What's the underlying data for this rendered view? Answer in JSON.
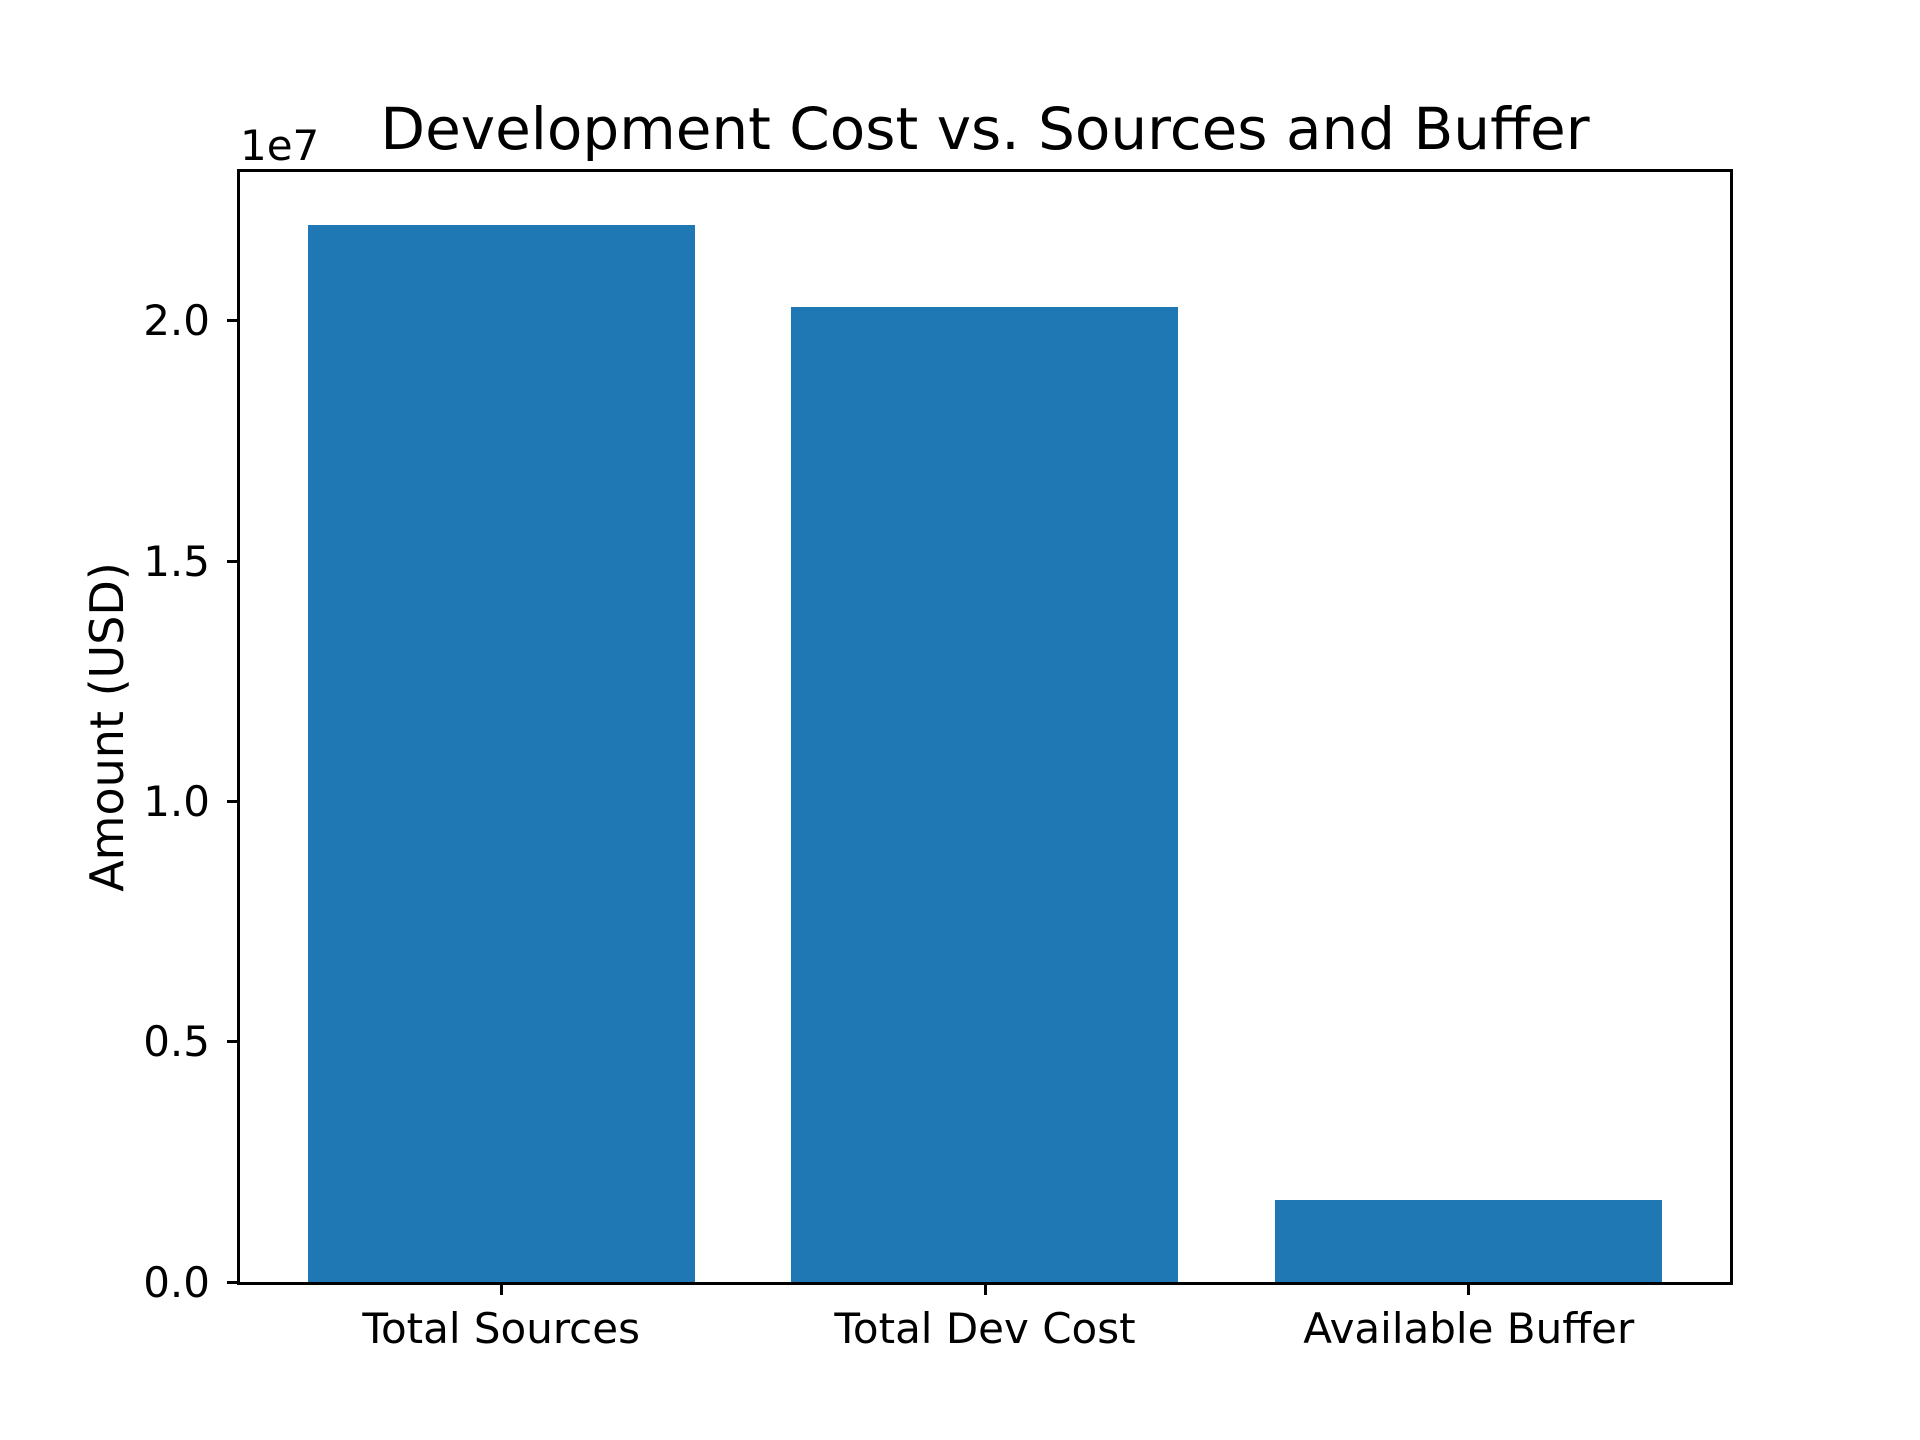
{
  "figure": {
    "background": "#ffffff",
    "text_color": "#000000"
  },
  "chart_data": {
    "type": "bar",
    "title": "Development Cost vs. Sources and Buffer",
    "xlabel": "",
    "ylabel": "Amount (USD)",
    "offset_text": "1e7",
    "categories": [
      "Total Sources",
      "Total Dev Cost",
      "Available Buffer"
    ],
    "values": [
      22000000,
      20300000,
      1700000
    ],
    "bar_color": "#1f77b4",
    "bar_width": 0.8,
    "ylim": [
      0,
      23100000
    ],
    "xlim": [
      -0.54,
      2.54
    ],
    "y_ticks": [
      {
        "value": 0,
        "label": "0.0"
      },
      {
        "value": 5000000,
        "label": "0.5"
      },
      {
        "value": 10000000,
        "label": "1.0"
      },
      {
        "value": 15000000,
        "label": "1.5"
      },
      {
        "value": 20000000,
        "label": "2.0"
      }
    ],
    "grid": false,
    "legend": null
  }
}
